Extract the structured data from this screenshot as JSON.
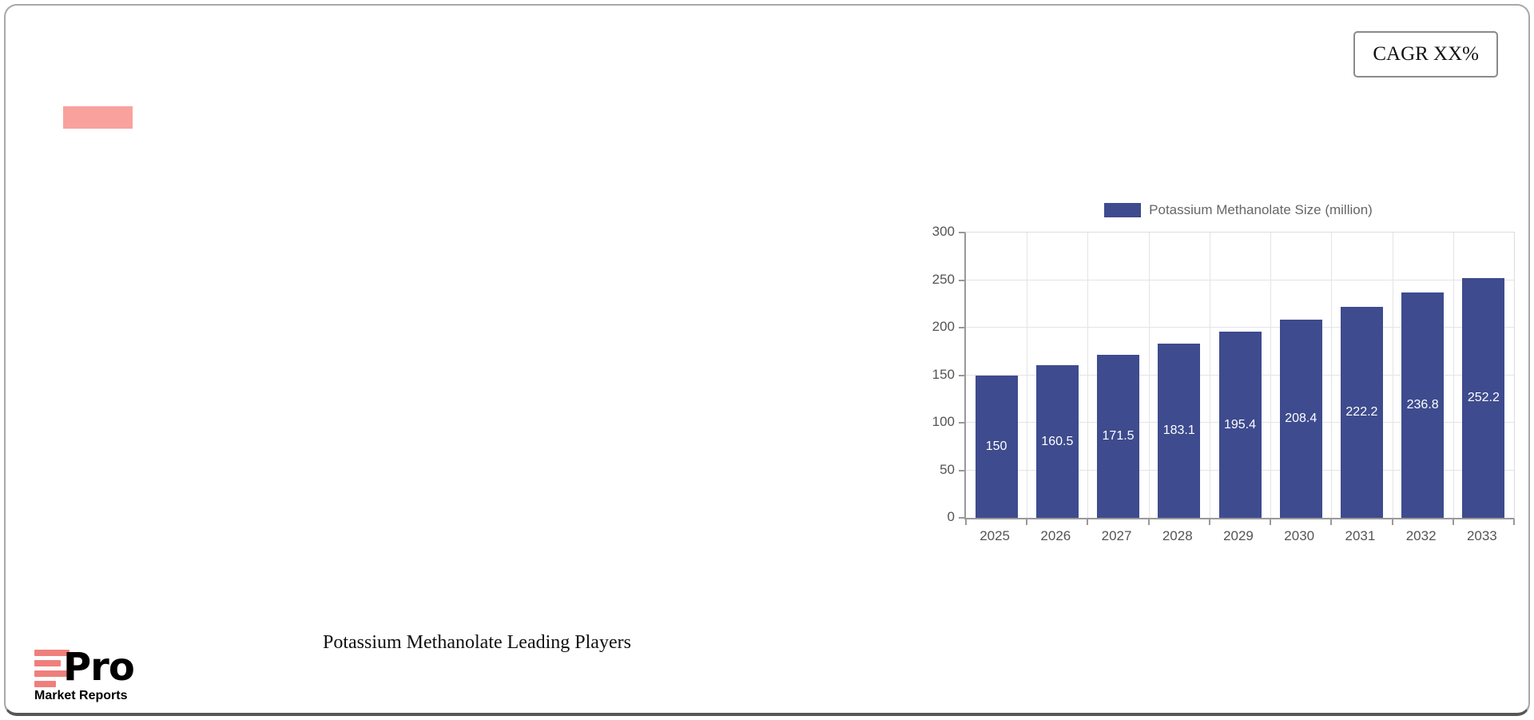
{
  "page": {
    "cagr_label": "CAGR XX%",
    "subtitle": "Potassium Methanolate Leading Players"
  },
  "logo": {
    "name": "Pro",
    "tagline": "Market Reports",
    "accent": "#ef7f7c"
  },
  "accent_bar_color": "#f9a19c",
  "chart_data": {
    "type": "bar",
    "series_label": "Potassium Methanolate Size (million)",
    "categories": [
      "2025",
      "2026",
      "2027",
      "2028",
      "2029",
      "2030",
      "2031",
      "2032",
      "2033"
    ],
    "values": [
      150,
      160.5,
      171.5,
      183.1,
      195.4,
      208.4,
      222.2,
      236.8,
      252.2
    ],
    "ylim": [
      0,
      300
    ],
    "yticks": [
      0,
      50,
      100,
      150,
      200,
      250,
      300
    ],
    "bar_color": "#3e4b8e",
    "grid": true,
    "legend_position": "top"
  }
}
